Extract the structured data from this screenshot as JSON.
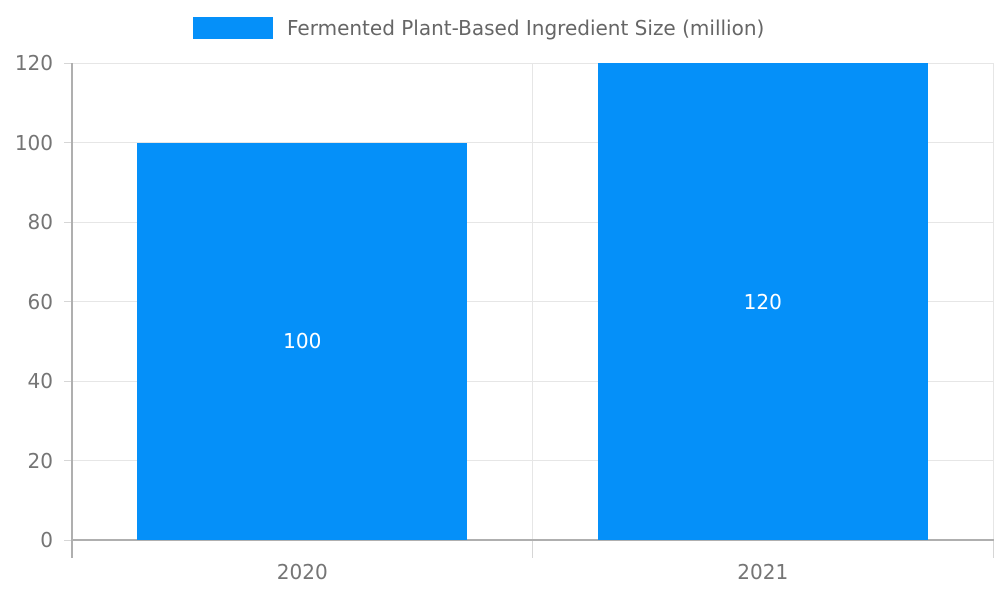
{
  "legend": {
    "label": "Fermented Plant-Based Ingredient Size (million)",
    "swatch_color": "#0590F9",
    "position": "top-center"
  },
  "chart_data": {
    "type": "bar",
    "title": "",
    "xlabel": "",
    "ylabel": "",
    "categories": [
      "2020",
      "2021"
    ],
    "series": [
      {
        "name": "Fermented Plant-Based Ingredient Size (million)",
        "values": [
          100,
          120
        ]
      }
    ],
    "value_labels": [
      "100",
      "120"
    ],
    "value_label_position": "inside-center",
    "ylim": [
      0,
      120
    ],
    "yticks": [
      0,
      20,
      40,
      60,
      80,
      100,
      120
    ],
    "grid": true,
    "legend_position": "top",
    "colors": {
      "bar": "#0590F9",
      "value_label": "#FFFFFF",
      "grid_line": "#E6E6E6",
      "axis_line": "#AFAFAF",
      "tick_line": "#D6D6D6",
      "axis_text": "#757575"
    }
  }
}
